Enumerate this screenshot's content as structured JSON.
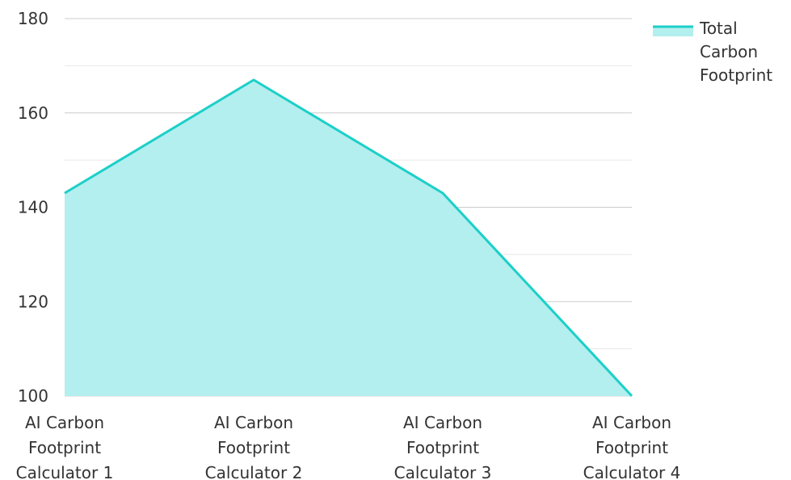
{
  "chart_data": {
    "type": "area",
    "categories": [
      [
        "AI Carbon",
        "Footprint",
        "Calculator 1"
      ],
      [
        "AI Carbon",
        "Footprint",
        "Calculator 2"
      ],
      [
        "AI Carbon",
        "Footprint",
        "Calculator 3"
      ],
      [
        "AI Carbon",
        "Footprint",
        "Calculator 4"
      ]
    ],
    "series": [
      {
        "name": [
          "Total",
          "Carbon",
          "Footprint"
        ],
        "values": [
          143,
          167,
          143,
          100
        ],
        "line_color": "#1ccfc9",
        "fill_color": "#b3efee"
      }
    ],
    "ylim": [
      100,
      180
    ],
    "yticks": [
      "100",
      "120",
      "140",
      "160",
      "180"
    ],
    "grid": true,
    "legend_position": "top-right"
  }
}
